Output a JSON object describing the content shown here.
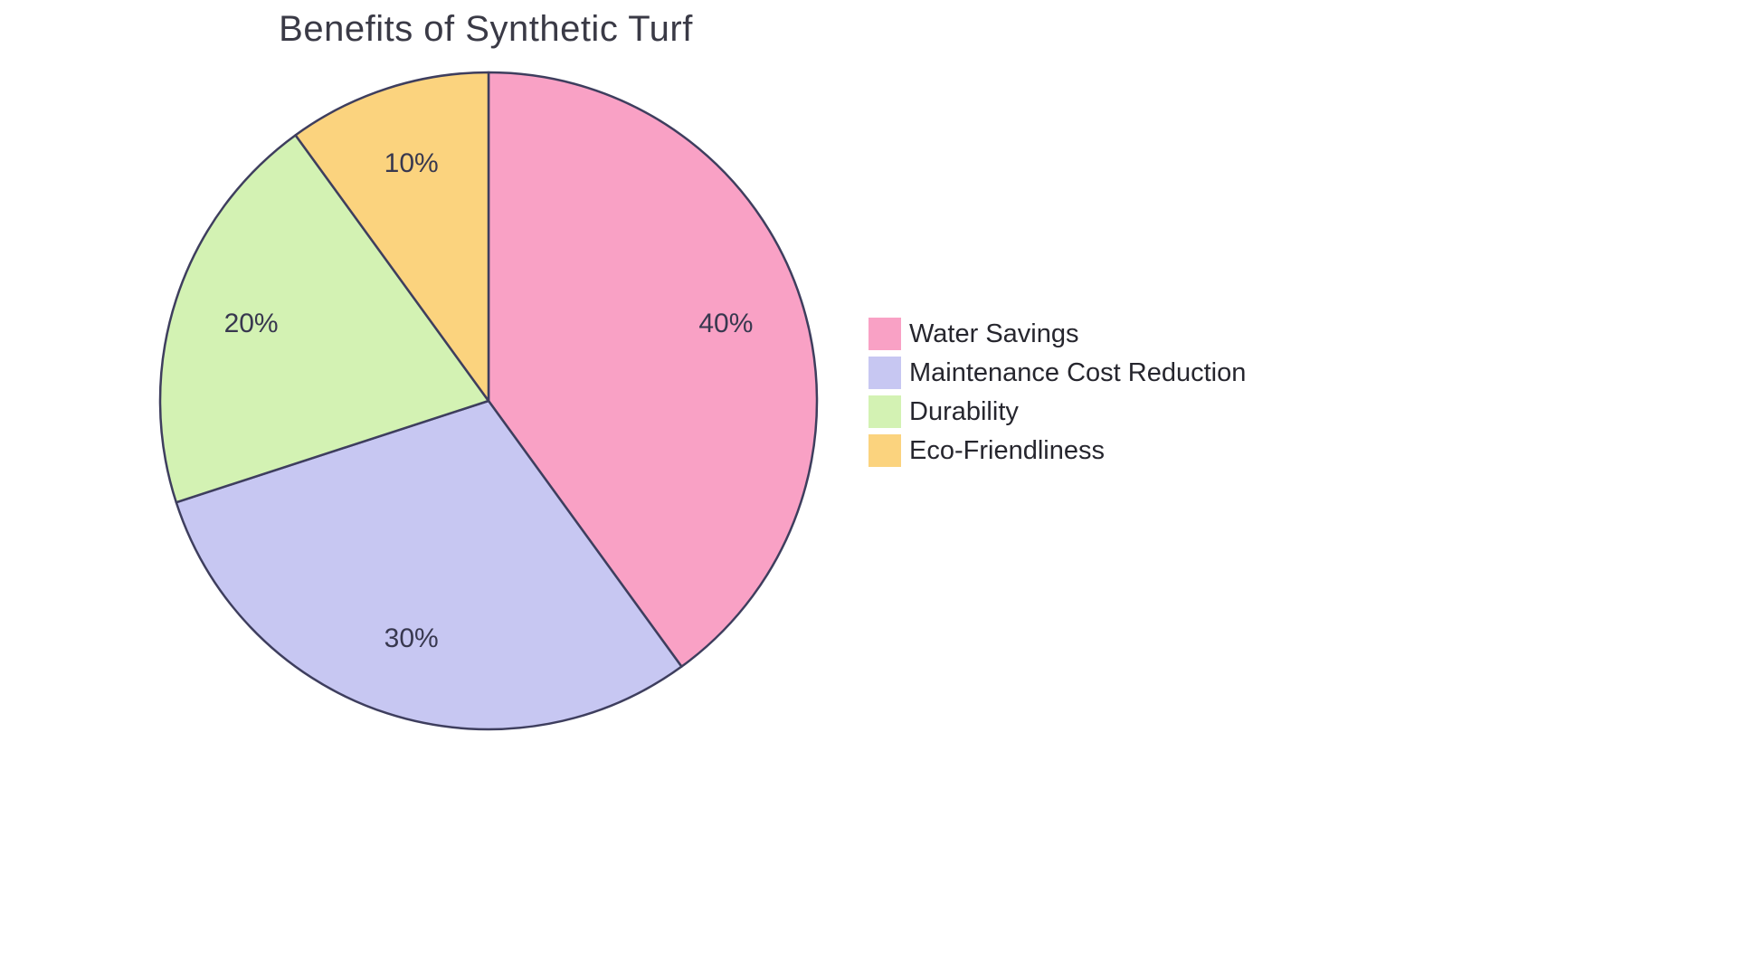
{
  "chart_data": {
    "type": "pie",
    "title": "Benefits of Synthetic Turf",
    "start_angle_deg": -90,
    "direction": "clockwise",
    "legend_position": "right",
    "stroke_color": "#3e3e5e",
    "label_color": "#38384f",
    "background_color": "#ffffff",
    "slices": [
      {
        "label": "Water Savings",
        "value": 40,
        "pct_label": "40%",
        "color": "#f9a1c5"
      },
      {
        "label": "Maintenance Cost Reduction",
        "value": 30,
        "pct_label": "30%",
        "color": "#c7c7f2"
      },
      {
        "label": "Durability",
        "value": 20,
        "pct_label": "20%",
        "color": "#d3f2b3"
      },
      {
        "label": "Eco-Friendliness",
        "value": 10,
        "pct_label": "10%",
        "color": "#fbd37e"
      }
    ]
  }
}
